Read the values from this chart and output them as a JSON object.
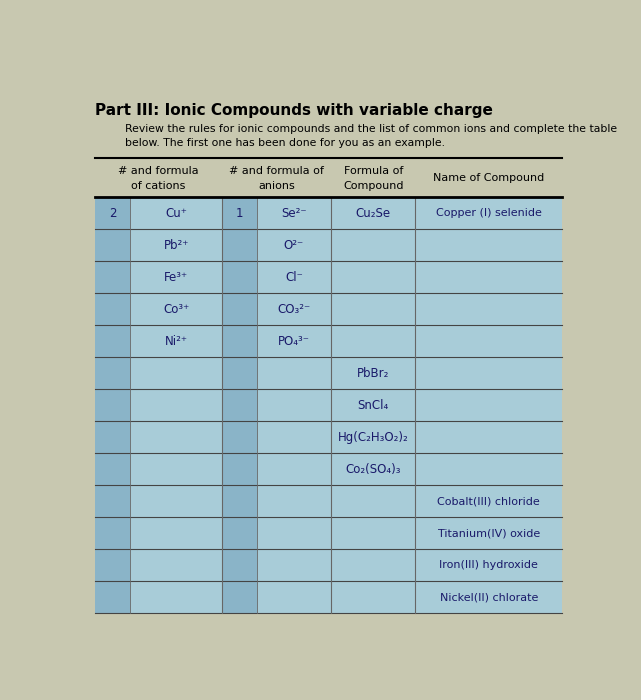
{
  "title": "Part III: Ionic Compounds with variable charge",
  "subtitle": "Review the rules for ionic compounds and the list of common ions and complete the table\nbelow. The first one has been done for you as an example.",
  "col_headers": [
    "# and formula\nof cations",
    "# and formula of\nanions",
    "Formula of\nCompound",
    "Name of Compound\n"
  ],
  "bg_color": "#c8c8b0",
  "cell_bg_dark": "#8ab4c8",
  "cell_bg_light": "#a8ccd8",
  "rows": [
    {
      "cation_num": "2",
      "cation": "Cu⁺",
      "anion_num": "1",
      "anion": "Se²⁻",
      "formula": "Cu₂Se",
      "name": "Copper (I) selenide"
    },
    {
      "cation_num": "",
      "cation": "Pb²⁺",
      "anion_num": "",
      "anion": "O²⁻",
      "formula": "",
      "name": ""
    },
    {
      "cation_num": "",
      "cation": "Fe³⁺",
      "anion_num": "",
      "anion": "Cl⁻",
      "formula": "",
      "name": ""
    },
    {
      "cation_num": "",
      "cation": "Co³⁺",
      "anion_num": "",
      "anion": "CO₃²⁻",
      "formula": "",
      "name": ""
    },
    {
      "cation_num": "",
      "cation": "Ni²⁺",
      "anion_num": "",
      "anion": "PO₄³⁻",
      "formula": "",
      "name": ""
    },
    {
      "cation_num": "",
      "cation": "",
      "anion_num": "",
      "anion": "",
      "formula": "PbBr₂",
      "name": ""
    },
    {
      "cation_num": "",
      "cation": "",
      "anion_num": "",
      "anion": "",
      "formula": "SnCl₄",
      "name": ""
    },
    {
      "cation_num": "",
      "cation": "",
      "anion_num": "",
      "anion": "",
      "formula": "Hg(C₂H₃O₂)₂",
      "name": ""
    },
    {
      "cation_num": "",
      "cation": "",
      "anion_num": "",
      "anion": "",
      "formula": "Co₂(SO₄)₃",
      "name": ""
    },
    {
      "cation_num": "",
      "cation": "",
      "anion_num": "",
      "anion": "",
      "formula": "",
      "name": "Cobalt(III) chloride"
    },
    {
      "cation_num": "",
      "cation": "",
      "anion_num": "",
      "anion": "",
      "formula": "",
      "name": "Titanium(IV) oxide"
    },
    {
      "cation_num": "",
      "cation": "",
      "anion_num": "",
      "anion": "",
      "formula": "",
      "name": "Iron(III) hydroxide"
    },
    {
      "cation_num": "",
      "cation": "",
      "anion_num": "",
      "anion": "",
      "formula": "",
      "name": "Nickel(II) chlorate"
    }
  ]
}
